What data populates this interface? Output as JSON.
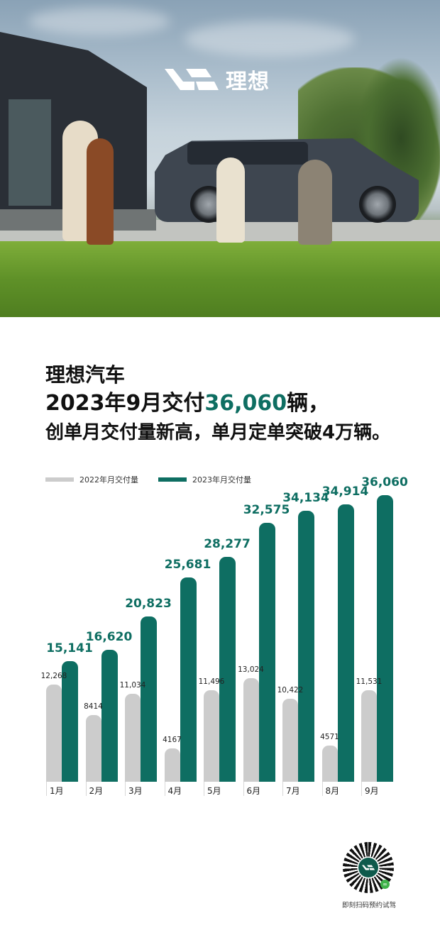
{
  "hero": {
    "brand_name": "理想",
    "scene": "family-with-suv-on-lawn"
  },
  "headline": {
    "line1": "理想汽车",
    "line2_prefix": "2023年9月交付",
    "line2_number": "36,060",
    "line2_suffix": "辆，",
    "line3": "创单月交付量新高，单月定单突破4万辆。"
  },
  "colors": {
    "accent": "#0e6e62",
    "series_2022": "#cccccc",
    "series_2023": "#0e6e62"
  },
  "legend": [
    {
      "label": "2022年月交付量",
      "color": "#cccccc"
    },
    {
      "label": "2023年月交付量",
      "color": "#0e6e62"
    }
  ],
  "chart_data": {
    "type": "bar",
    "title": "",
    "xlabel": "",
    "ylabel": "",
    "categories": [
      "1月",
      "2月",
      "3月",
      "4月",
      "5月",
      "6月",
      "7月",
      "8月",
      "9月"
    ],
    "series": [
      {
        "name": "2022年月交付量",
        "values": [
          12268,
          8414,
          11034,
          4167,
          11496,
          13024,
          10422,
          4571,
          11531
        ],
        "labels": [
          "12,268",
          "8414",
          "11,034",
          "4167",
          "11,496",
          "13,024",
          "10,422",
          "4571",
          "11,531"
        ]
      },
      {
        "name": "2023年月交付量",
        "values": [
          15141,
          16620,
          20823,
          25681,
          28277,
          32575,
          34134,
          34914,
          36060
        ],
        "labels": [
          "15,141",
          "16,620",
          "20,823",
          "25,681",
          "28,277",
          "32,575",
          "34,134",
          "34,914",
          "36,060"
        ]
      }
    ],
    "ylim": [
      0,
      36060
    ],
    "grid": false,
    "legend_position": "top-left",
    "data_labels": true
  },
  "qr": {
    "caption": "即刻扫码预约试驾",
    "mini_icon": "mini-program-icon"
  }
}
